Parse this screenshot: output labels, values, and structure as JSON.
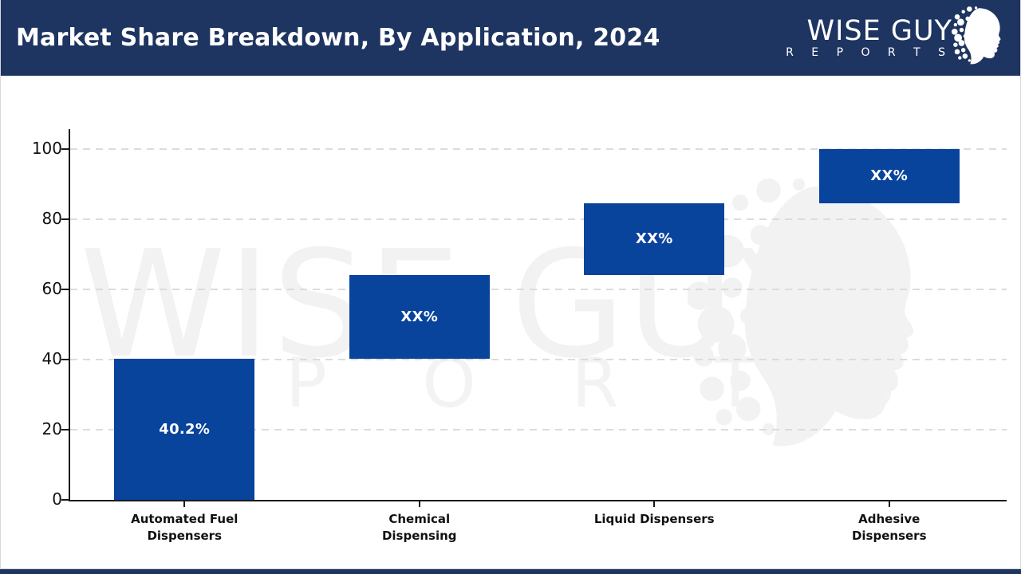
{
  "header": {
    "title": "Market Share Breakdown, By Application, 2024",
    "logo": {
      "line1": "WISE GUY",
      "line2": "R E P O R T S"
    }
  },
  "watermark": {
    "line1": "WISE GUY",
    "line2": "P O R T S"
  },
  "chart_data": {
    "type": "bar",
    "subtype": "waterfall-stacked-percentage",
    "title": "Market Share Breakdown, By Application, 2024",
    "categories": [
      "Automated Fuel\nDispensers",
      "Chemical\nDispensing",
      "Liquid Dispensers",
      "Adhesive\nDispensers"
    ],
    "segments": [
      {
        "category": "Automated Fuel Dispensers",
        "start": 0,
        "end": 40.2,
        "label": "40.2%"
      },
      {
        "category": "Chemical Dispensing",
        "start": 40.2,
        "end": 64.1,
        "label": "XX%"
      },
      {
        "category": "Liquid Dispensers",
        "start": 64.1,
        "end": 84.6,
        "label": "XX%"
      },
      {
        "category": "Adhesive Dispensers",
        "start": 84.6,
        "end": 100,
        "label": "XX%"
      }
    ],
    "xlabel": "",
    "ylabel": "",
    "ylim": [
      0,
      100
    ],
    "yticks": [
      0,
      20,
      40,
      60,
      80,
      100
    ],
    "grid": "horizontal-dashed",
    "legend": "none",
    "bar_color": "#08439c",
    "bar_label_color": "#ffffff",
    "axis_color": "#1a1a1a",
    "grid_color": "#dcdcdc"
  },
  "colors": {
    "header_navy": "#1e3461",
    "footer_navy": "#1e3461",
    "background": "#ffffff",
    "watermark_gray": "#f2f2f2"
  }
}
